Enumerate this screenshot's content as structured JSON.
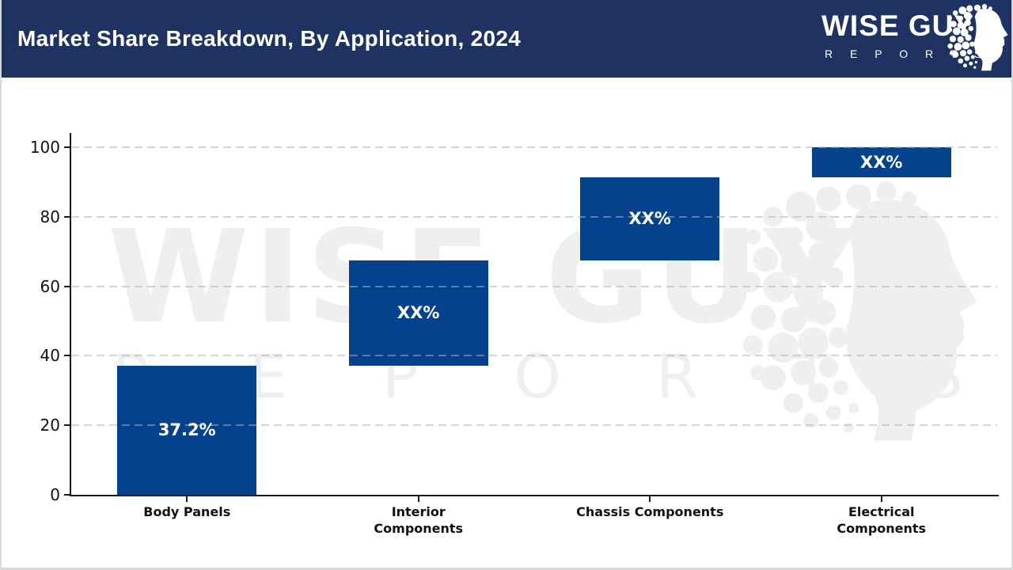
{
  "header": {
    "title": "Market Share Breakdown, By Application, 2024",
    "background_color": "#1f3362",
    "logo": {
      "wordmark": "WISE GUY",
      "reports_label": "R E P O R T S"
    }
  },
  "watermark": {
    "wordmark": "WISE GUY",
    "reports_label": "R E P O R T S"
  },
  "chart_data": {
    "type": "bar",
    "subtype": "waterfall",
    "title": "Market Share Breakdown, By Application, 2024",
    "categories": [
      "Body Panels",
      "Interior\nComponents",
      "Chassis Components",
      "Electrical\nComponents"
    ],
    "segments": [
      {
        "category": "Body Panels",
        "start": 0,
        "end": 37.2,
        "value": 37.2,
        "bar_label": "37.2%"
      },
      {
        "category": "Interior Components",
        "start": 37.2,
        "end": 67.4,
        "value": 30.2,
        "bar_label": "XX%"
      },
      {
        "category": "Chassis Components",
        "start": 67.4,
        "end": 91.4,
        "value": 24.0,
        "bar_label": "XX%"
      },
      {
        "category": "Electrical Components",
        "start": 91.4,
        "end": 100,
        "value": 8.6,
        "bar_label": "XX%"
      }
    ],
    "y_ticks": [
      0,
      20,
      40,
      60,
      80,
      100
    ],
    "ylim": [
      0,
      104
    ],
    "xlabel": "",
    "ylabel": "",
    "grid": "horizontal-dashed",
    "grid_above_bars": true,
    "bar_color": "#04428d",
    "bar_label_color": "#ffffff",
    "axis_color": "#1a1a1a"
  }
}
